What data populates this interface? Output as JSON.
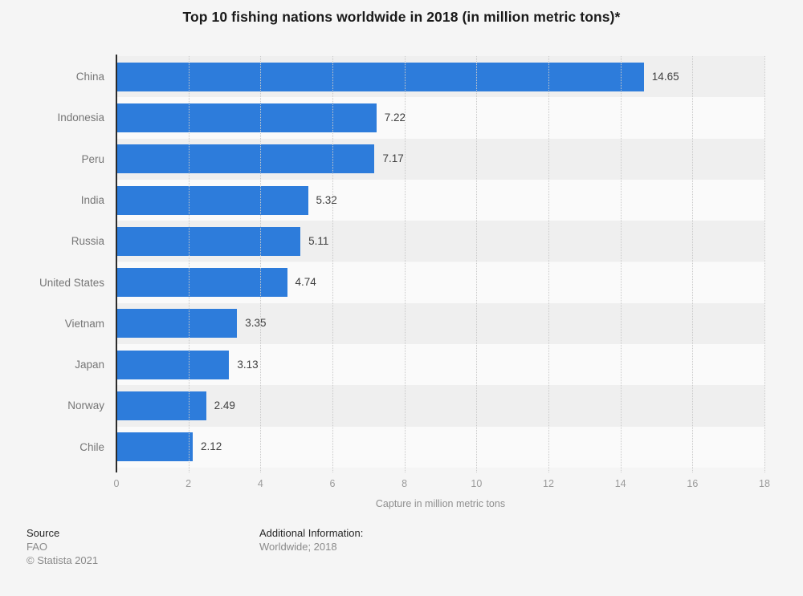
{
  "title": "Top 10 fishing nations worldwide in 2018 (in million metric tons)*",
  "chart_data": {
    "type": "bar",
    "orientation": "horizontal",
    "categories": [
      "China",
      "Indonesia",
      "Peru",
      "India",
      "Russia",
      "United States",
      "Vietnam",
      "Japan",
      "Norway",
      "Chile"
    ],
    "values": [
      14.65,
      7.22,
      7.17,
      5.32,
      5.11,
      4.74,
      3.35,
      3.13,
      2.49,
      2.12
    ],
    "value_labels": [
      "14.65",
      "7.22",
      "7.17",
      "5.32",
      "5.11",
      "4.74",
      "3.35",
      "3.13",
      "2.49",
      "2.12"
    ],
    "xlabel": "Capture in million metric tons",
    "x_ticks": [
      0,
      2,
      4,
      6,
      8,
      10,
      12,
      14,
      16,
      18
    ],
    "xlim": [
      0,
      18
    ],
    "grid": "vertical-dotted",
    "legend": "none",
    "bar_color": "#2d7cdb",
    "stripe_color_odd": "#efefef",
    "stripe_color_even": "#fafafa"
  },
  "footer": {
    "source_label": "Source",
    "source_value": "FAO",
    "copyright": "© Statista 2021",
    "additional_info_label": "Additional Information:",
    "additional_info_value": "Worldwide; 2018"
  }
}
